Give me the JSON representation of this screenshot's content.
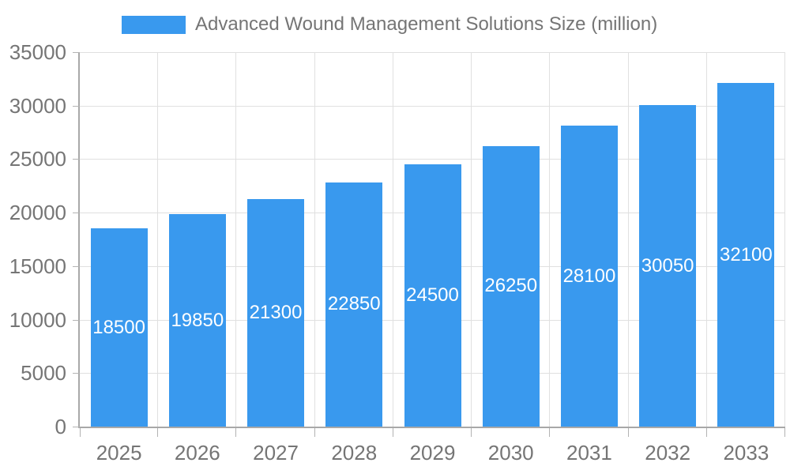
{
  "legend": {
    "label": "Advanced Wound Management Solutions Size (million)",
    "swatch_color": "#3999ee"
  },
  "chart_data": {
    "type": "bar",
    "title": "Advanced Wound Management Solutions Size (million)",
    "categories": [
      "2025",
      "2026",
      "2027",
      "2028",
      "2029",
      "2030",
      "2031",
      "2032",
      "2033"
    ],
    "values": [
      18500,
      19850,
      21300,
      22850,
      24500,
      26250,
      28100,
      30050,
      32100
    ],
    "series_name": "Advanced Wound Management Solutions Size (million)",
    "xlabel": "",
    "ylabel": "",
    "ylim": [
      0,
      35000
    ],
    "yticks": [
      0,
      5000,
      10000,
      15000,
      20000,
      25000,
      30000,
      35000
    ],
    "grid": true,
    "legend_position": "top",
    "bar_color": "#3999ee",
    "value_label_color": "#ffffff",
    "axis_text_color": "#757575"
  }
}
